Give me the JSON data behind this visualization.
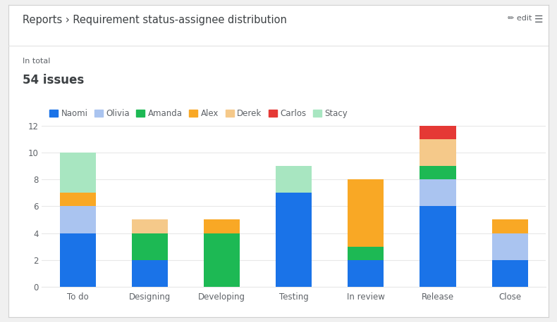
{
  "title_left": "Reports › Requirement status-assignee distribution",
  "subtitle": "In total",
  "total_label": "54 issues",
  "categories": [
    "To do",
    "Designing",
    "Developing",
    "Testing",
    "In review",
    "Release",
    "Close"
  ],
  "assignees": [
    "Naomi",
    "Olivia",
    "Amanda",
    "Alex",
    "Derek",
    "Carlos",
    "Stacy"
  ],
  "colors": {
    "Naomi": "#1a73e8",
    "Olivia": "#aac4f0",
    "Amanda": "#1db954",
    "Alex": "#f9a825",
    "Derek": "#f5c98a",
    "Carlos": "#e53935",
    "Stacy": "#a8e6c1"
  },
  "data": {
    "To do": {
      "Naomi": 4,
      "Olivia": 2,
      "Amanda": 0,
      "Alex": 1,
      "Derek": 0,
      "Carlos": 0,
      "Stacy": 3
    },
    "Designing": {
      "Naomi": 2,
      "Olivia": 0,
      "Amanda": 2,
      "Alex": 0,
      "Derek": 1,
      "Carlos": 0,
      "Stacy": 0
    },
    "Developing": {
      "Naomi": 0,
      "Olivia": 0,
      "Amanda": 4,
      "Alex": 1,
      "Derek": 0,
      "Carlos": 0,
      "Stacy": 0
    },
    "Testing": {
      "Naomi": 7,
      "Olivia": 0,
      "Amanda": 0,
      "Alex": 0,
      "Derek": 0,
      "Carlos": 0,
      "Stacy": 2
    },
    "In review": {
      "Naomi": 2,
      "Olivia": 0,
      "Amanda": 1,
      "Alex": 5,
      "Derek": 0,
      "Carlos": 0,
      "Stacy": 0
    },
    "Release": {
      "Naomi": 6,
      "Olivia": 2,
      "Amanda": 1,
      "Alex": 0,
      "Derek": 2,
      "Carlos": 1,
      "Stacy": 0
    },
    "Close": {
      "Naomi": 2,
      "Olivia": 2,
      "Amanda": 0,
      "Alex": 1,
      "Derek": 0,
      "Carlos": 0,
      "Stacy": 0
    }
  },
  "ylim": [
    0,
    13
  ],
  "yticks": [
    0,
    2,
    4,
    6,
    8,
    10,
    12
  ],
  "outer_bg": "#f0f0f0",
  "card_bg": "#ffffff",
  "plot_bg": "#ffffff",
  "grid_color": "#e8e8e8",
  "text_color": "#5f6368",
  "title_color": "#3c4043",
  "label_color": "#5f6368",
  "bar_width": 0.5
}
